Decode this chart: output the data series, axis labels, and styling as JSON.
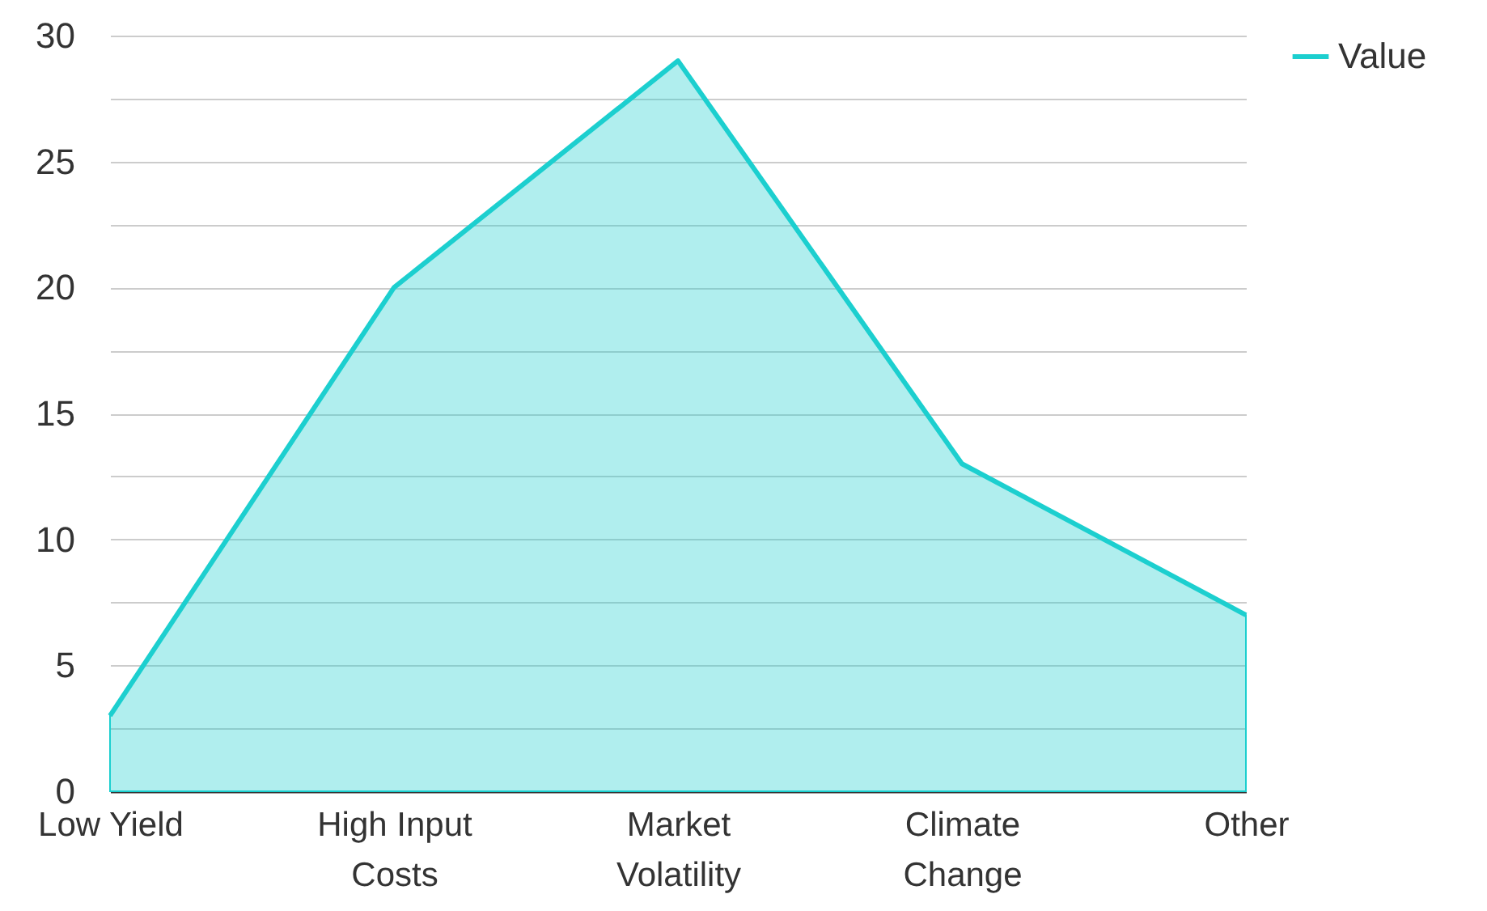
{
  "chart_data": {
    "type": "area",
    "categories": [
      "Low Yield",
      "High Input Costs",
      "Market Volatility",
      "Climate Change",
      "Other"
    ],
    "series": [
      {
        "name": "Value",
        "color": "#1ccfcf",
        "values": [
          3,
          20,
          29,
          13,
          7
        ]
      }
    ],
    "ylim": [
      0,
      30
    ],
    "yticks": [
      0,
      {
        "value": 2.5,
        "label": null
      },
      5,
      {
        "value": 7.5,
        "label": null
      },
      10,
      {
        "value": 12.5,
        "label": null
      },
      15,
      {
        "value": 17.5,
        "label": null
      },
      20,
      {
        "value": 22.5,
        "label": null
      },
      25,
      {
        "value": 27.5,
        "label": null
      },
      30
    ],
    "grid": "y",
    "legend": "top right"
  }
}
